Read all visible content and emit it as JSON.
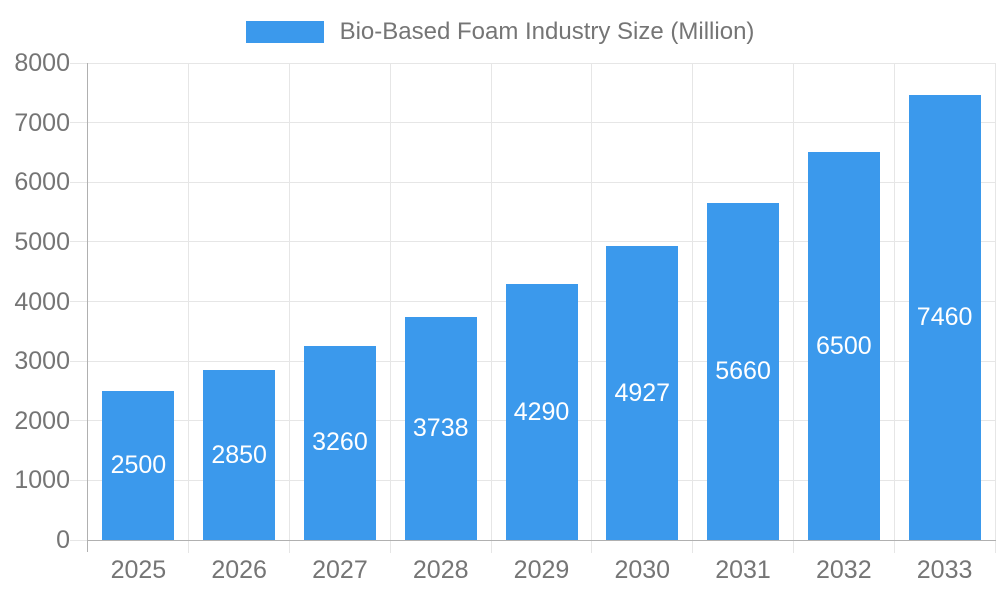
{
  "chart_data": {
    "type": "bar",
    "title": "Bio-Based Foam Industry Size (Million)",
    "legend": {
      "label": "Bio-Based Foam Industry Size (Million)",
      "position": "top-center"
    },
    "categories": [
      "2025",
      "2026",
      "2027",
      "2028",
      "2029",
      "2030",
      "2031",
      "2032",
      "2033"
    ],
    "series": [
      {
        "name": "Bio-Based Foam Industry Size (Million)",
        "values": [
          2500,
          2850,
          3260,
          3738,
          4290,
          4927,
          5660,
          6500,
          7460
        ]
      }
    ],
    "value_labels": [
      "2500",
      "2850",
      "3260",
      "3738",
      "4290",
      "4927",
      "5660",
      "6500",
      "7460"
    ],
    "value_label_position": "inside-center",
    "xlabel": "",
    "ylabel": "",
    "ylim": [
      0,
      8000
    ],
    "y_ticks": [
      0,
      1000,
      2000,
      3000,
      4000,
      5000,
      6000,
      7000,
      8000
    ],
    "grid": true,
    "colors": {
      "bar": "#3b99ec",
      "value_label": "#ffffff",
      "axis_text": "#757575",
      "gridline": "#e6e6e6",
      "axis_line": "#b0b0b0",
      "background": "#ffffff"
    }
  }
}
